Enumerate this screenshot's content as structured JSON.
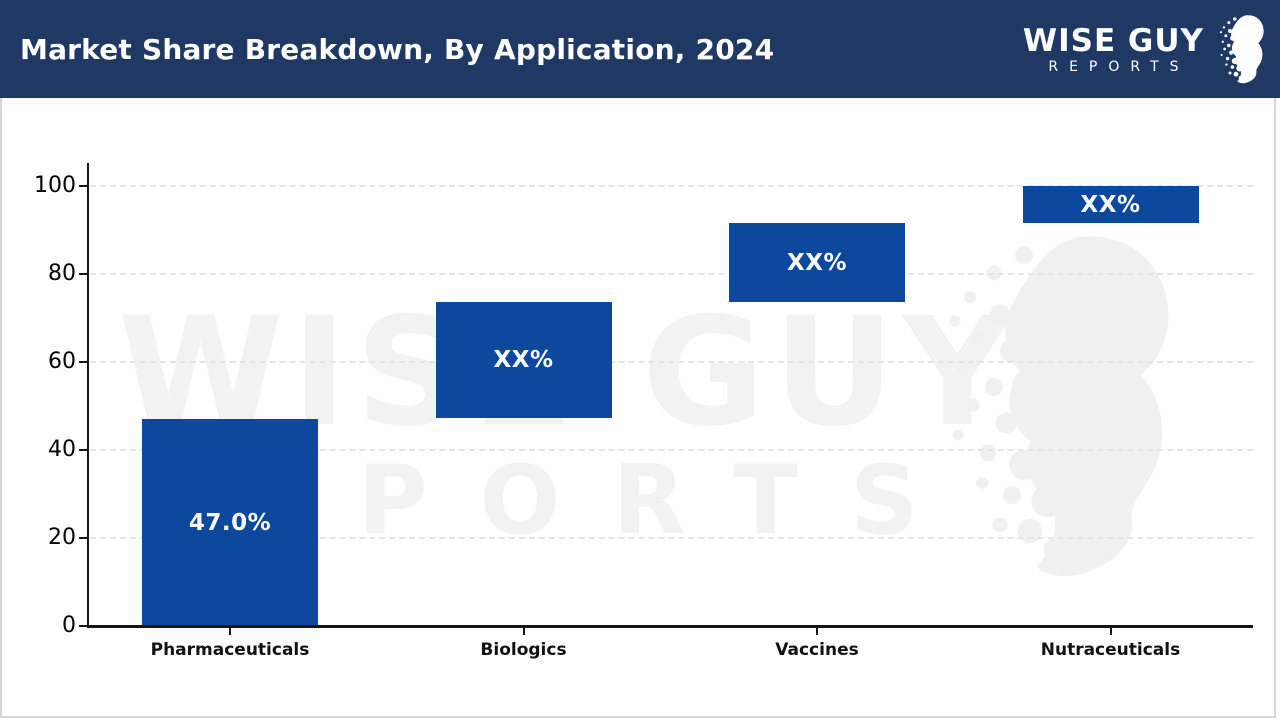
{
  "header": {
    "title": "Market Share Breakdown, By Application, 2024",
    "background_color": "#1F3864",
    "logo": {
      "line1": "WISE GUY",
      "line2": "REPORTS"
    }
  },
  "watermark": {
    "line1": "WISE GUY",
    "line2": "PORTS"
  },
  "chart_data": {
    "type": "bar",
    "subtype": "waterfall",
    "title": "Market Share Breakdown, By Application, 2024",
    "categories": [
      "Pharmaceuticals",
      "Biologics",
      "Vaccines",
      "Nutraceuticals"
    ],
    "segments": [
      {
        "category": "Pharmaceuticals",
        "start": 0,
        "end": 47.0,
        "label": "47.0%"
      },
      {
        "category": "Biologics",
        "start": 47.0,
        "end": 73.5,
        "label": "XX%"
      },
      {
        "category": "Vaccines",
        "start": 73.5,
        "end": 91.5,
        "label": "XX%"
      },
      {
        "category": "Nutraceuticals",
        "start": 91.5,
        "end": 100.0,
        "label": "XX%"
      }
    ],
    "xlabel": "",
    "ylabel": "",
    "ylim": [
      0,
      100
    ],
    "yticks": [
      0,
      20,
      40,
      60,
      80,
      100
    ],
    "grid": "dashed-horizontal",
    "legend": "none",
    "bar_color": "#0B489E",
    "bar_label_color": "#FFFFFF",
    "axis_color": "#161616"
  }
}
